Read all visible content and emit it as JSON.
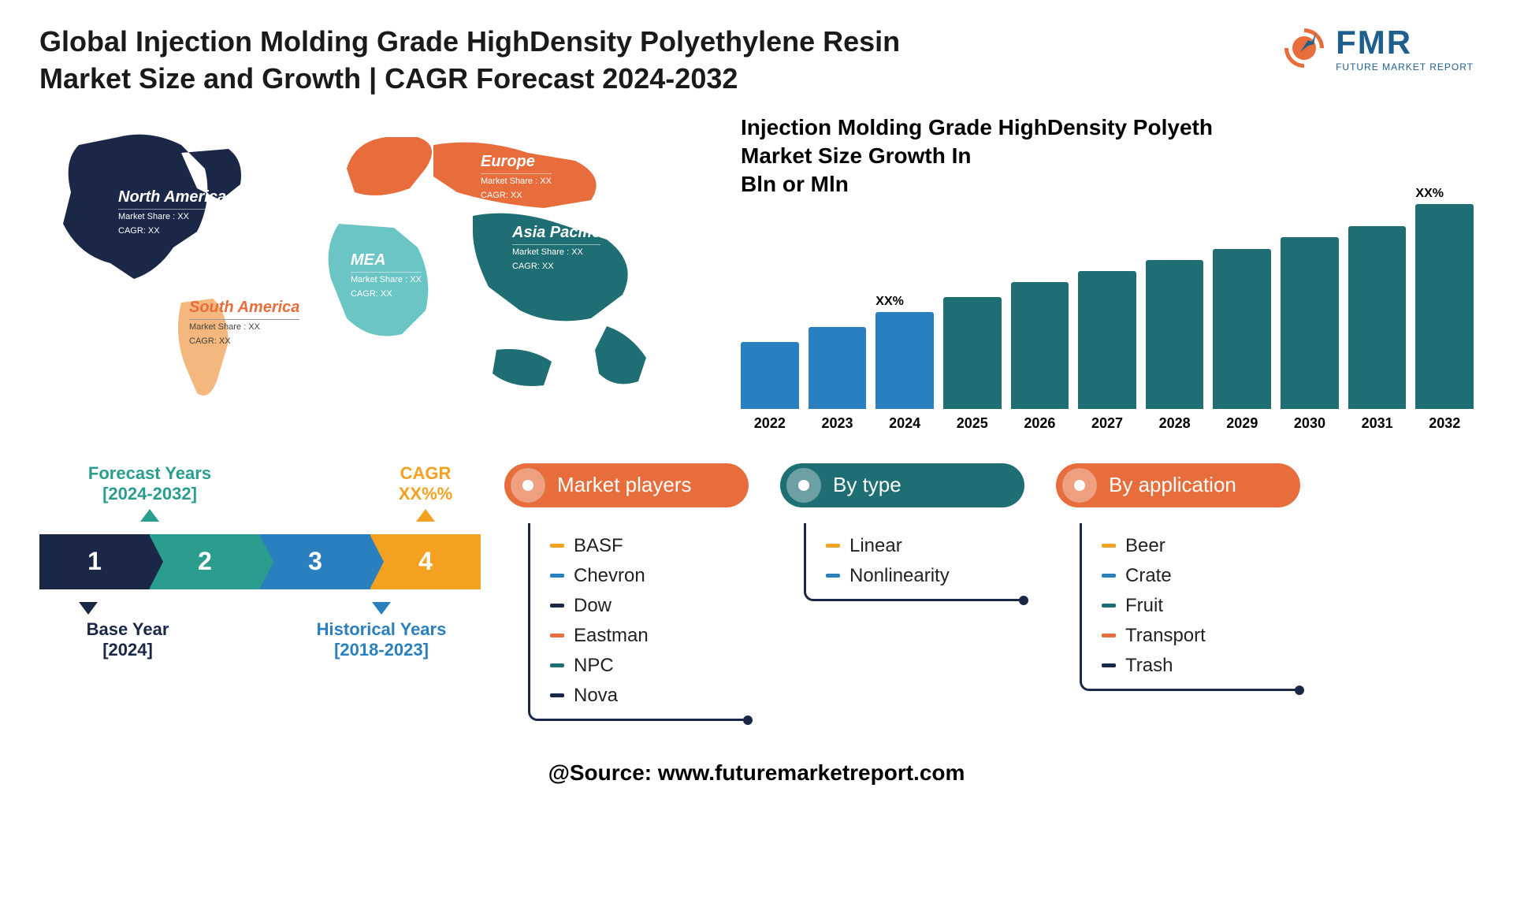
{
  "title": "Global Injection Molding Grade HighDensity Polyethylene Resin Market Size and Growth | CAGR Forecast 2024-2032",
  "logo": {
    "main": "FMR",
    "sub": "FUTURE MARKET REPORT"
  },
  "map": {
    "regions": [
      {
        "name": "North America",
        "share": "Market Share : XX",
        "cagr": "CAGR: XX",
        "color": "#1a2747"
      },
      {
        "name": "South America",
        "share": "Market Share : XX",
        "cagr": "CAGR: XX",
        "color": "#f4b77e",
        "text_color": "#444"
      },
      {
        "name": "Europe",
        "share": "Market Share : XX",
        "cagr": "CAGR: XX",
        "color": "#e76e3c"
      },
      {
        "name": "MEA",
        "share": "Market Share : XX",
        "cagr": "CAGR: XX",
        "color": "#6cc5c5"
      },
      {
        "name": "Asia Pacific",
        "share": "Market Share : XX",
        "cagr": "CAGR: XX",
        "color": "#1e6e73"
      }
    ]
  },
  "chart": {
    "title_line1": "Injection Molding Grade HighDensity Polyeth",
    "title_line2": "Market Size Growth In",
    "title_line3": "Bln or Mln",
    "years": [
      "2022",
      "2023",
      "2024",
      "2025",
      "2026",
      "2027",
      "2028",
      "2029",
      "2030",
      "2031",
      "2032"
    ],
    "values": [
      90,
      110,
      130,
      150,
      170,
      185,
      200,
      215,
      230,
      245,
      275
    ],
    "bar_colors": [
      "#2a7fbf",
      "#2a7fbf",
      "#2a7fbf",
      "#1e6e73",
      "#1e6e73",
      "#1e6e73",
      "#1e6e73",
      "#1e6e73",
      "#1e6e73",
      "#1e6e73",
      "#1e6e73"
    ],
    "pct_labels": {
      "2": "XX%",
      "10": "XX%"
    }
  },
  "timeline": {
    "forecast": {
      "label": "Forecast Years",
      "years": "[2024-2032]"
    },
    "cagr": {
      "label": "CAGR",
      "value": "XX%%"
    },
    "base": {
      "label": "Base Year",
      "years": "[2024]"
    },
    "historical": {
      "label": "Historical Years",
      "years": "[2018-2023]"
    },
    "segments": [
      "1",
      "2",
      "3",
      "4"
    ]
  },
  "pills": [
    {
      "title": "Market players",
      "bg": "#e76e3c",
      "items": [
        {
          "label": "BASF",
          "color": "#f4a020"
        },
        {
          "label": "Chevron",
          "color": "#2a7fbf"
        },
        {
          "label": "Dow",
          "color": "#1a2747"
        },
        {
          "label": "Eastman",
          "color": "#e76e3c"
        },
        {
          "label": "NPC",
          "color": "#1e6e73"
        },
        {
          "label": "Nova",
          "color": "#1a2747"
        }
      ]
    },
    {
      "title": "By type",
      "bg": "#1e6e73",
      "items": [
        {
          "label": "Linear",
          "color": "#f4a020"
        },
        {
          "label": "Nonlinearity",
          "color": "#2a7fbf"
        }
      ]
    },
    {
      "title": "By application",
      "bg": "#e76e3c",
      "items": [
        {
          "label": "Beer",
          "color": "#f4a020"
        },
        {
          "label": "Crate",
          "color": "#2a7fbf"
        },
        {
          "label": "Fruit",
          "color": "#1e6e73"
        },
        {
          "label": "Transport",
          "color": "#e76e3c"
        },
        {
          "label": "Trash",
          "color": "#1a2747"
        }
      ]
    }
  ],
  "source": "@Source: www.futuremarketreport.com"
}
